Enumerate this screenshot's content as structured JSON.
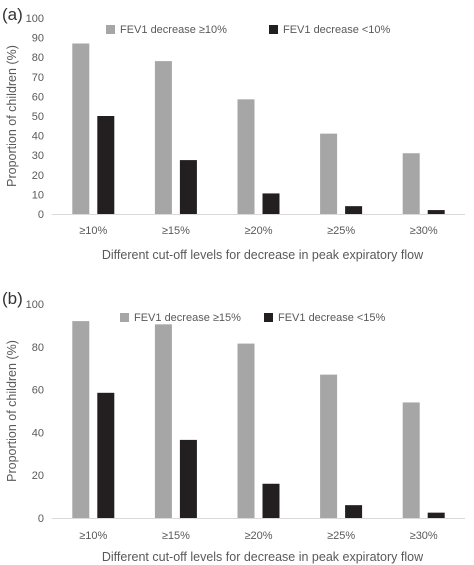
{
  "chart_data": [
    {
      "panel_label": "(a)",
      "type": "bar",
      "title": "",
      "xlabel": "Different cut-off levels for decrease in peak expiratory flow",
      "ylabel": "Proportion of children (%)",
      "ylim": [
        0,
        100
      ],
      "yticks": [
        "0",
        "10",
        "20",
        "30",
        "40",
        "50",
        "60",
        "70",
        "80",
        "90",
        "100"
      ],
      "categories": [
        "≥10%",
        "≥15%",
        "≥20%",
        "≥25%",
        "≥30%"
      ],
      "grid": false,
      "legend": "top",
      "series": [
        {
          "name": "FEV1 decrease ≥10%",
          "color": "#a6a6a6",
          "values": [
            87,
            78,
            58.5,
            41,
            31
          ]
        },
        {
          "name": "FEV1 decrease <10%",
          "color": "#231f20",
          "values": [
            50,
            27.5,
            10.5,
            4,
            2
          ]
        }
      ]
    },
    {
      "panel_label": "(b)",
      "type": "bar",
      "title": "",
      "xlabel": "Different cut-off levels for decrease in peak expiratory flow",
      "ylabel": "Proportion of children (%)",
      "ylim": [
        0,
        100
      ],
      "yticks": [
        "0",
        "20",
        "40",
        "60",
        "80",
        "100"
      ],
      "categories": [
        "≥10%",
        "≥15%",
        "≥20%",
        "≥25%",
        "≥30%"
      ],
      "grid": false,
      "legend": "top",
      "series": [
        {
          "name": "FEV1 decrease ≥15%",
          "color": "#a6a6a6",
          "values": [
            92,
            90.5,
            81.5,
            67,
            54
          ]
        },
        {
          "name": "FEV1 decrease <15%",
          "color": "#231f20",
          "values": [
            58.5,
            36.5,
            16,
            6,
            2.5
          ]
        }
      ]
    }
  ]
}
